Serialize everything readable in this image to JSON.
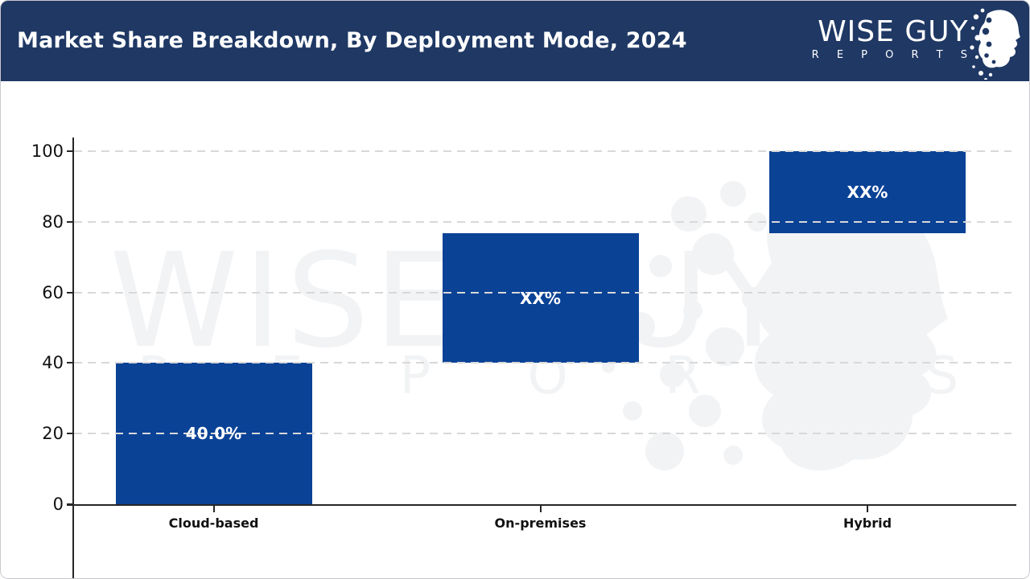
{
  "header": {
    "title": "Market Share Breakdown, By Deployment Mode, 2024",
    "brand": {
      "name": "WISE GUY",
      "subtitle": "R E P O R T S"
    }
  },
  "watermark": {
    "line1": "WISE GUY",
    "line2": "R E P O R T S"
  },
  "chart_data": {
    "type": "bar",
    "variant": "waterfall",
    "title": "Market Share Breakdown, By Deployment Mode, 2024",
    "categories": [
      "Cloud-based",
      "On-premises",
      "Hybrid"
    ],
    "series": [
      {
        "name": "Market share (%)",
        "segments": [
          {
            "category": "Cloud-based",
            "start": 0,
            "end": 40,
            "label": "40.0%"
          },
          {
            "category": "On-premises",
            "start": 40,
            "end": 76.7,
            "label": "XX%"
          },
          {
            "category": "Hybrid",
            "start": 76.7,
            "end": 100,
            "label": "XX%"
          }
        ]
      }
    ],
    "ylim": [
      0,
      100
    ],
    "yticks": [
      0,
      20,
      40,
      60,
      80,
      100
    ],
    "grid": {
      "horizontal": true,
      "style": "dashed",
      "drawn_over_bars": true
    },
    "legend": "none",
    "colors": {
      "bar": "#0a4296",
      "bar_label": "#ffffff"
    }
  },
  "colors": {
    "header_bg": "#1f3864",
    "title_text": "#ffffff",
    "bar": "#0a4296",
    "grid": "#d8d8d8",
    "axis": "#262626",
    "tick_text": "#111111",
    "watermark": "#f2f3f5",
    "card_border": "#c9c9ce",
    "background": "#ffffff"
  }
}
